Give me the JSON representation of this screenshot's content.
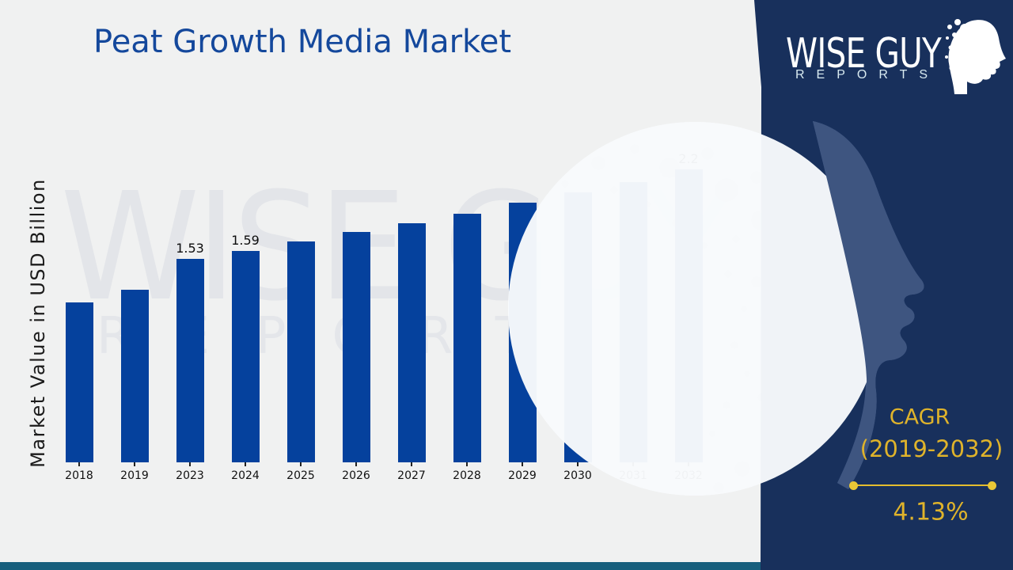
{
  "page": {
    "background_color": "#f0f1f1"
  },
  "header": {
    "title": "Peat Growth Media Market",
    "title_color": "#14489c"
  },
  "watermark": {
    "line1": "WISE GUY",
    "line2": "REPORTS"
  },
  "brand_panel": {
    "panel_color": "#18305c",
    "logo_line1": "WISE GUY",
    "logo_line2": "REPORTS",
    "cagr": {
      "title": "CAGR",
      "range": "(2019-2032)",
      "value": "4.13%",
      "accent_color": "#dfb32b"
    }
  },
  "footer": {
    "accent_color": "#175f7d"
  },
  "chart_data": {
    "type": "bar",
    "title": "Peat Growth Media Market",
    "xlabel": "",
    "ylabel": "Market Value in USD Billion",
    "categories": [
      "2018",
      "2019",
      "2023",
      "2024",
      "2025",
      "2026",
      "2027",
      "2028",
      "2029",
      "2030",
      "2031",
      "2032"
    ],
    "values": [
      1.2,
      1.3,
      1.53,
      1.59,
      1.66,
      1.73,
      1.8,
      1.87,
      1.95,
      2.03,
      2.11,
      2.2
    ],
    "point_labels": [
      "",
      "",
      "1.53",
      "1.59",
      "",
      "",
      "",
      "",
      "",
      "",
      "",
      "2.2"
    ],
    "bar_color": "#05419d",
    "ylim": [
      0,
      2.4
    ],
    "grid": false,
    "legend": null,
    "units": "USD Billion"
  }
}
